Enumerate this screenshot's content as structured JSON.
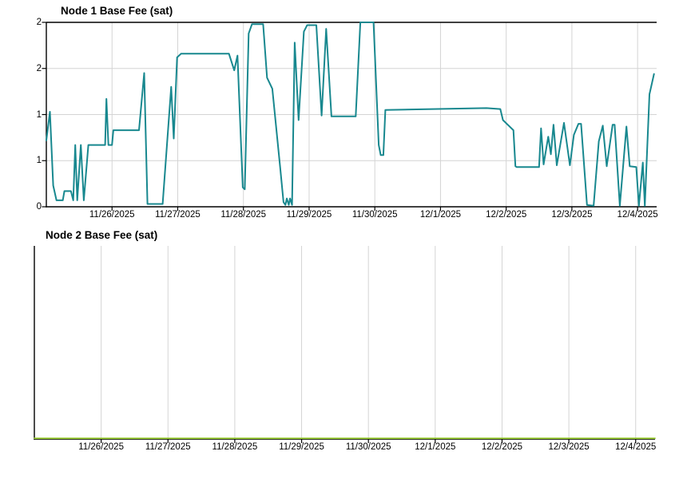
{
  "chart_data": [
    {
      "type": "line",
      "title": "Node 1 Base Fee (sat)",
      "ylabel": "",
      "xlabel": "",
      "line_color": "#18888F",
      "ylim": [
        0,
        2
      ],
      "xlim_days": [
        0,
        9.29
      ],
      "grid": true,
      "legend_position": "none",
      "y_ticks": [
        {
          "value": 2,
          "label": "2"
        },
        {
          "value": 1.5,
          "label": "2"
        },
        {
          "value": 1,
          "label": "1"
        },
        {
          "value": 0.5,
          "label": "1"
        },
        {
          "value": 0,
          "label": "0"
        }
      ],
      "x_ticks": [
        {
          "day": 1,
          "label": "11/26/2025"
        },
        {
          "day": 2,
          "label": "11/27/2025"
        },
        {
          "day": 3,
          "label": "11/28/2025"
        },
        {
          "day": 4,
          "label": "11/29/2025"
        },
        {
          "day": 5,
          "label": "11/30/2025"
        },
        {
          "day": 6,
          "label": "12/1/2025"
        },
        {
          "day": 7,
          "label": "12/2/2025"
        },
        {
          "day": 8,
          "label": "12/3/2025"
        },
        {
          "day": 9,
          "label": "12/4/2025"
        }
      ],
      "points": [
        [
          0,
          0.72
        ],
        [
          0.055,
          1.03
        ],
        [
          0.105,
          0.23
        ],
        [
          0.155,
          0.07
        ],
        [
          0.25,
          0.07
        ],
        [
          0.275,
          0.17
        ],
        [
          0.375,
          0.17
        ],
        [
          0.41,
          0.07
        ],
        [
          0.44,
          0.67
        ],
        [
          0.47,
          0.07
        ],
        [
          0.525,
          0.67
        ],
        [
          0.57,
          0.07
        ],
        [
          0.64,
          0.67
        ],
        [
          0.895,
          0.67
        ],
        [
          0.915,
          1.17
        ],
        [
          0.945,
          0.67
        ],
        [
          1.0,
          0.67
        ],
        [
          1.02,
          0.83
        ],
        [
          1.41,
          0.83
        ],
        [
          1.49,
          1.45
        ],
        [
          1.54,
          0.03
        ],
        [
          1.77,
          0.03
        ],
        [
          1.9,
          1.3
        ],
        [
          1.94,
          0.74
        ],
        [
          1.99,
          1.62
        ],
        [
          2.05,
          1.66
        ],
        [
          2.78,
          1.66
        ],
        [
          2.86,
          1.48
        ],
        [
          2.91,
          1.64
        ],
        [
          2.99,
          0.21
        ],
        [
          3.02,
          0.19
        ],
        [
          3.08,
          1.88
        ],
        [
          3.13,
          1.98
        ],
        [
          3.3,
          1.98
        ],
        [
          3.36,
          1.4
        ],
        [
          3.44,
          1.28
        ],
        [
          3.56,
          0.42
        ],
        [
          3.61,
          0.05
        ],
        [
          3.64,
          0.02
        ],
        [
          3.66,
          0.09
        ],
        [
          3.69,
          0.02
        ],
        [
          3.71,
          0.09
        ],
        [
          3.74,
          0.02
        ],
        [
          3.78,
          1.78
        ],
        [
          3.84,
          0.94
        ],
        [
          3.92,
          1.9
        ],
        [
          3.97,
          1.97
        ],
        [
          4.11,
          1.97
        ],
        [
          4.19,
          0.99
        ],
        [
          4.26,
          1.93
        ],
        [
          4.34,
          0.98
        ],
        [
          4.71,
          0.98
        ],
        [
          4.78,
          2.0
        ],
        [
          4.98,
          2.0
        ],
        [
          5.06,
          0.67
        ],
        [
          5.09,
          0.56
        ],
        [
          5.13,
          0.56
        ],
        [
          5.16,
          1.05
        ],
        [
          6.7,
          1.07
        ],
        [
          6.91,
          1.06
        ],
        [
          6.95,
          0.94
        ],
        [
          7.11,
          0.83
        ],
        [
          7.14,
          0.44
        ],
        [
          7.16,
          0.43
        ],
        [
          7.5,
          0.43
        ],
        [
          7.53,
          0.85
        ],
        [
          7.57,
          0.46
        ],
        [
          7.64,
          0.76
        ],
        [
          7.68,
          0.57
        ],
        [
          7.72,
          0.89
        ],
        [
          7.77,
          0.45
        ],
        [
          7.88,
          0.91
        ],
        [
          7.97,
          0.45
        ],
        [
          8.03,
          0.78
        ],
        [
          8.1,
          0.9
        ],
        [
          8.14,
          0.9
        ],
        [
          8.23,
          0.02
        ],
        [
          8.33,
          0.01
        ],
        [
          8.41,
          0.71
        ],
        [
          8.47,
          0.88
        ],
        [
          8.53,
          0.44
        ],
        [
          8.62,
          0.89
        ],
        [
          8.65,
          0.89
        ],
        [
          8.73,
          0.01
        ],
        [
          8.83,
          0.87
        ],
        [
          8.88,
          0.44
        ],
        [
          8.98,
          0.43
        ],
        [
          9.02,
          0.01
        ],
        [
          9.08,
          0.48
        ],
        [
          9.11,
          0.01
        ],
        [
          9.18,
          1.22
        ],
        [
          9.25,
          1.44
        ]
      ]
    },
    {
      "type": "line",
      "title": "Node 2 Base Fee (sat)",
      "ylabel": "",
      "xlabel": "",
      "line_color": "#9ACD32",
      "ylim": [
        0,
        2
      ],
      "xlim_days": [
        0,
        9.29
      ],
      "grid": true,
      "legend_position": "none",
      "y_ticks": [],
      "x_ticks": [
        {
          "day": 1,
          "label": "11/26/2025"
        },
        {
          "day": 2,
          "label": "11/27/2025"
        },
        {
          "day": 3,
          "label": "11/28/2025"
        },
        {
          "day": 4,
          "label": "11/29/2025"
        },
        {
          "day": 5,
          "label": "11/30/2025"
        },
        {
          "day": 6,
          "label": "12/1/2025"
        },
        {
          "day": 7,
          "label": "12/2/2025"
        },
        {
          "day": 8,
          "label": "12/3/2025"
        },
        {
          "day": 9,
          "label": "12/4/2025"
        }
      ],
      "points": [
        [
          0,
          0
        ],
        [
          9.29,
          0
        ]
      ]
    }
  ],
  "colors": {
    "grid": "#d4d4d4",
    "axis": "#000000",
    "background": "#ffffff"
  }
}
